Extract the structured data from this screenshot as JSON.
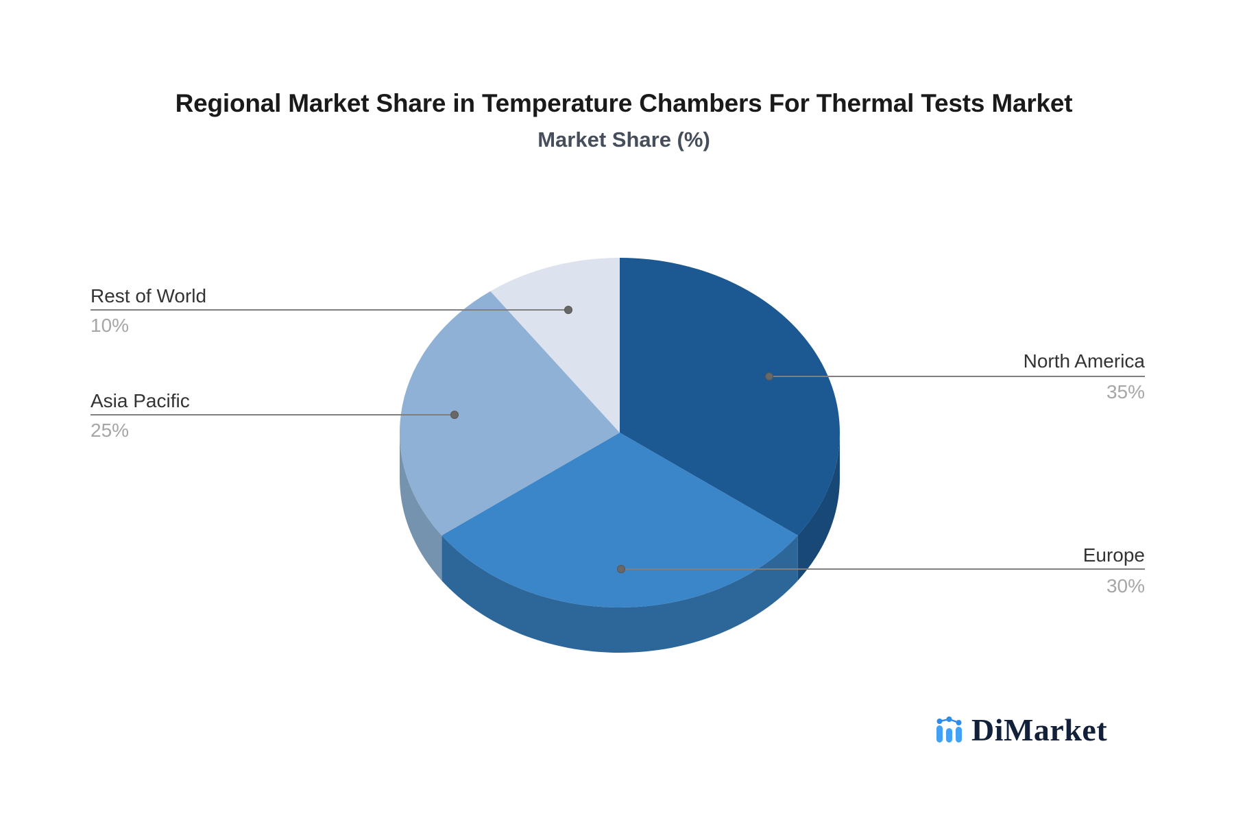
{
  "page": {
    "background": "#ffffff"
  },
  "chart_data": {
    "type": "pie",
    "style": "3d",
    "title": "Regional Market Share in Temperature Chambers For Thermal Tests Market",
    "subtitle": "Market Share (%)",
    "unit": "%",
    "direction": "clockwise",
    "start_angle_deg": 0,
    "legend_position": "callout-labels",
    "series": [
      {
        "label": "North America",
        "value": 35,
        "display": "35%",
        "color": "#1c5892",
        "side_color": "#174876"
      },
      {
        "label": "Europe",
        "value": 30,
        "display": "30%",
        "color": "#3a86c8",
        "side_color": "#2d6799"
      },
      {
        "label": "Asia Pacific",
        "value": 25,
        "display": "25%",
        "color": "#8fb1d6",
        "side_color": "#7592ae"
      },
      {
        "label": "Rest of World",
        "value": 10,
        "display": "10%",
        "color": "#dce3ef",
        "side_color": "#b9c5d8"
      }
    ],
    "callout_style": {
      "line_color": "#7f7f7f",
      "dot_color": "#686868",
      "label_color": "#333333",
      "value_color": "#a6a6a6"
    }
  },
  "branding": {
    "logo_text": "DiMarket",
    "logo_icon": "bar-chart-logo-icon",
    "logo_text_color": "#13203a",
    "logo_accent_color": "#42a0f6"
  }
}
